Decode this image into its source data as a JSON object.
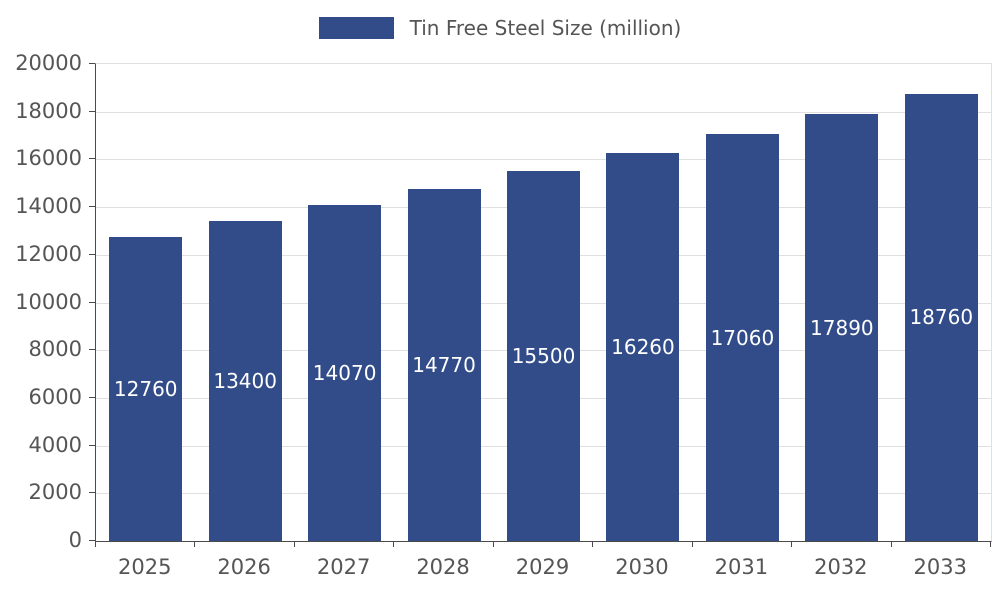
{
  "chart_data": {
    "type": "bar",
    "title": "",
    "categories": [
      "2025",
      "2026",
      "2027",
      "2028",
      "2029",
      "2030",
      "2031",
      "2032",
      "2033"
    ],
    "series": [
      {
        "name": "Tin Free Steel Size (million)",
        "values": [
          12760,
          13400,
          14070,
          14770,
          15500,
          16260,
          17060,
          17890,
          18760
        ]
      }
    ],
    "xlabel": "",
    "ylabel": "",
    "ylim": [
      0,
      20000
    ],
    "ytick_step": 2000,
    "grid": true,
    "legend_position": "top-center",
    "bar_color": "#314C89",
    "value_label_color": "#ffffff",
    "grid_color": "#E0E0E0",
    "axis_color": "#4a4a4a",
    "tick_label_color": "#555555"
  }
}
